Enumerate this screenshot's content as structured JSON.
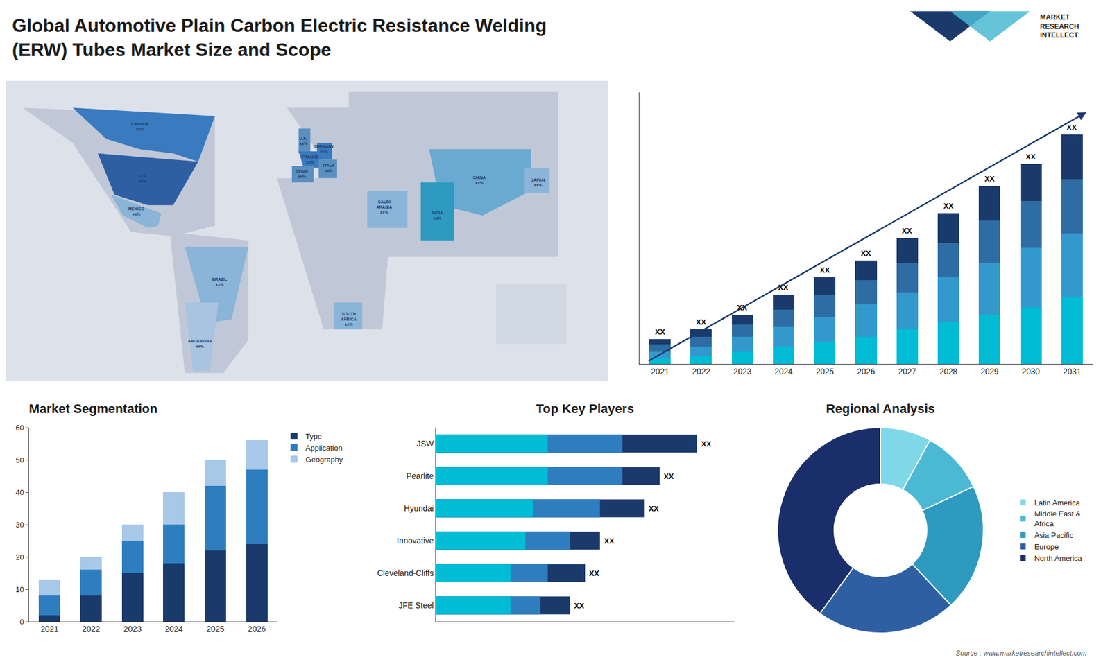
{
  "title": "Global Automotive Plain Carbon Electric Resistance Welding\n(ERW) Tubes Market Size and Scope",
  "annotations": [
    {
      "text": "MARKET\nRESEARCH\nINTELLECT"
    },
    {
      "text": "Source : www.marketresearchintellect.com"
    }
  ],
  "chart_data": [
    {
      "type": "map",
      "xlim": [
        -180,
        180
      ],
      "ylim": [
        -60,
        85
      ],
      "tick_labels": false,
      "annotations": [
        {
          "text": "U.S.\nxx%",
          "x": -98,
          "y": 38
        },
        {
          "text": "CANADA\nxx%",
          "x": -100,
          "y": 63
        },
        {
          "text": "MEXICO\nxx%",
          "x": -102,
          "y": 22
        },
        {
          "text": "BRAZIL\nxx%",
          "x": -52,
          "y": -12
        },
        {
          "text": "ARGENTINA\nxx%",
          "x": -64,
          "y": -42
        },
        {
          "text": "FRANCE\nxx%",
          "x": 2,
          "y": 47
        },
        {
          "text": "GERMANY\nxx%",
          "x": 10,
          "y": 52
        },
        {
          "text": "U.K.\nxx%",
          "x": -2,
          "y": 56
        },
        {
          "text": "SPAIN\nxx%",
          "x": -3,
          "y": 40
        },
        {
          "text": "ITALY\nxx%",
          "x": 13,
          "y": 43
        },
        {
          "text": "SOUTH\nAFRICA\nxx%",
          "x": 25,
          "y": -30
        },
        {
          "text": "SAUDI\nARABIA\nxx%",
          "x": 46,
          "y": 24
        },
        {
          "text": "CHINA\nxx%",
          "x": 103,
          "y": 37
        },
        {
          "text": "INDIA\nxx%",
          "x": 78,
          "y": 20
        },
        {
          "text": "JAPAN\nxx%",
          "x": 138,
          "y": 36
        }
      ]
    },
    {
      "type": "bar",
      "stacked": true,
      "categories": [
        "2021",
        "2022",
        "2023",
        "2024",
        "2025",
        "2026",
        "2027",
        "2028",
        "2029",
        "2030",
        "2031"
      ],
      "series": [
        {
          "color": "#00bcd4",
          "values": [
            2,
            3,
            5,
            7,
            9,
            11,
            14,
            17,
            20,
            23,
            27
          ]
        },
        {
          "color": "#3399cc",
          "values": [
            3,
            4,
            6,
            8,
            10,
            13,
            15,
            18,
            21,
            24,
            26
          ]
        },
        {
          "color": "#2e6da4",
          "values": [
            3,
            4,
            5,
            7,
            9,
            10,
            12,
            14,
            17,
            19,
            22
          ]
        },
        {
          "color": "#1a3a6b",
          "values": [
            2,
            3,
            4,
            6,
            7,
            8,
            10,
            12,
            14,
            15,
            18
          ]
        }
      ],
      "ylim": [
        0,
        110
      ],
      "tick_labels": "x",
      "grid": false,
      "annotations": [
        {
          "text": "XX",
          "x": "2021"
        },
        {
          "text": "XX",
          "x": "2022"
        },
        {
          "text": "XX",
          "x": "2023"
        },
        {
          "text": "XX",
          "x": "2024"
        },
        {
          "text": "XX",
          "x": "2025"
        },
        {
          "text": "XX",
          "x": "2026"
        },
        {
          "text": "XX",
          "x": "2027"
        },
        {
          "text": "XX",
          "x": "2028"
        },
        {
          "text": "XX",
          "x": "2029"
        },
        {
          "text": "XX",
          "x": "2030"
        },
        {
          "text": "XX",
          "x": "2031"
        }
      ]
    },
    {
      "type": "bar",
      "title": "Market Segmentation",
      "stacked": true,
      "categories": [
        "2021",
        "2022",
        "2023",
        "2024",
        "2025",
        "2026"
      ],
      "series": [
        {
          "name": "Type",
          "color": "#1a3a6b",
          "values": [
            2,
            8,
            15,
            18,
            22,
            24
          ]
        },
        {
          "name": "Application",
          "color": "#2e7ebf",
          "values": [
            6,
            8,
            10,
            12,
            20,
            23
          ]
        },
        {
          "name": "Geography",
          "color": "#a8c8e8",
          "values": [
            5,
            4,
            5,
            10,
            8,
            9
          ]
        }
      ],
      "ylim": [
        0,
        60
      ],
      "yticks": [
        0,
        10,
        20,
        30,
        40,
        50,
        60
      ],
      "grid": false,
      "legend": "upper right"
    },
    {
      "type": "bar",
      "title": "Top Key Players",
      "orientation": "horizontal",
      "stacked": false,
      "categories": [
        "JSW",
        "Pearlite",
        "Hyundai",
        "Innovative",
        "Cleveland-Cliffs",
        "JFE Steel"
      ],
      "series": [
        {
          "color": "#1a3a6b",
          "values": [
            35,
            30,
            28,
            22,
            20,
            18
          ]
        },
        {
          "color": "#2e7ebf",
          "values": [
            25,
            25,
            22,
            18,
            15,
            14
          ]
        },
        {
          "color": "#00bcd4",
          "values": [
            15,
            15,
            13,
            12,
            10,
            10
          ]
        }
      ],
      "xlim": [
        0,
        40
      ],
      "tick_labels": "y",
      "grid": false,
      "annotations": [
        {
          "text": "XX",
          "y": "JSW"
        },
        {
          "text": "XX",
          "y": "Pearlite"
        },
        {
          "text": "XX",
          "y": "Hyundai"
        },
        {
          "text": "XX",
          "y": "Innovative"
        },
        {
          "text": "XX",
          "y": "Cleveland-Cliffs"
        },
        {
          "text": "XX",
          "y": "JFE Steel"
        }
      ]
    },
    {
      "type": "donut",
      "title": "Regional Analysis",
      "categories": [
        "Latin America",
        "Middle East &\nAfrica",
        "Asia Pacific",
        "Europe",
        "North America"
      ],
      "values": [
        8,
        10,
        20,
        22,
        40
      ],
      "colors": [
        "#7fd8e8",
        "#4bb8d4",
        "#2e9ac0",
        "#2e5fa3",
        "#1a2e6b"
      ],
      "legend": "right"
    }
  ]
}
